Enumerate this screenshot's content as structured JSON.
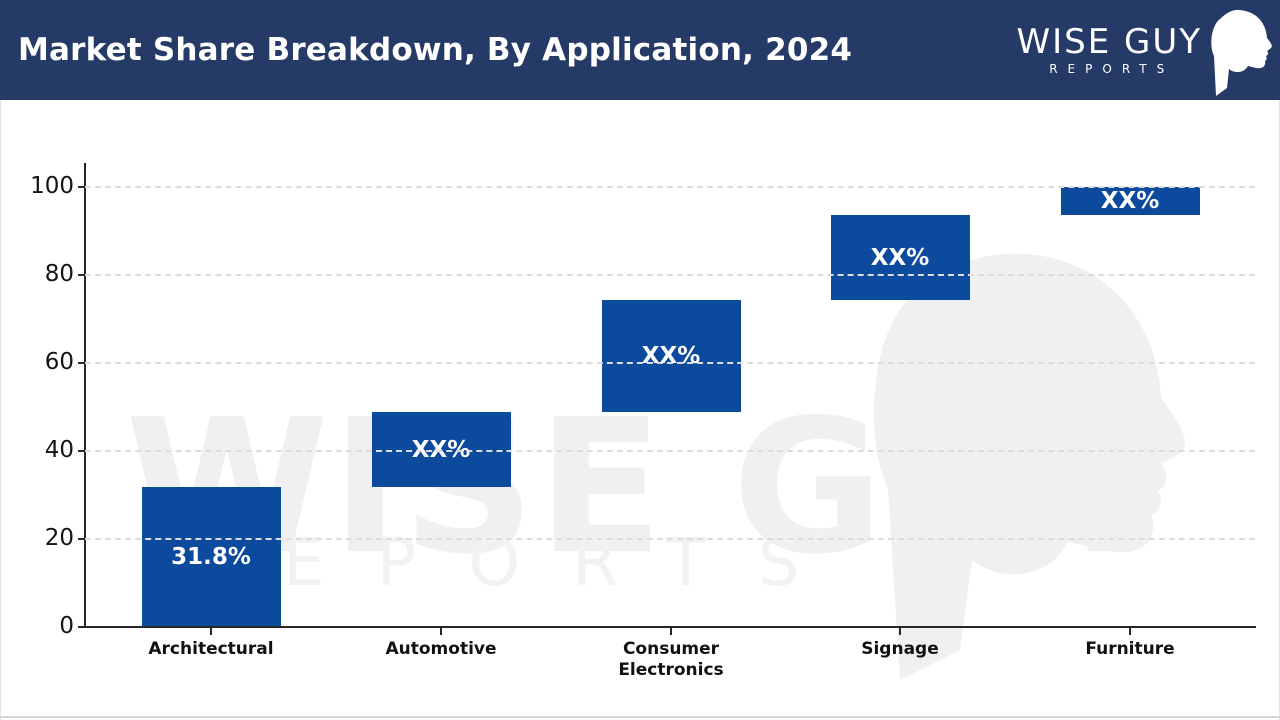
{
  "header": {
    "title": "Market Share Breakdown, By Application, 2024",
    "logo": {
      "line1": "WISE GUY",
      "line2": "REPORTS"
    }
  },
  "watermark": {
    "line1": "WISE GUY",
    "line2": "REPORTS"
  },
  "colors": {
    "header_bg": "#253a66",
    "bar": "#0c4a9e",
    "grid": "#dcdcdc",
    "axis": "#262626",
    "tick_text": "#141414",
    "bar_label_text": "#ffffff",
    "watermark": "#f0f0f2"
  },
  "chart_data": {
    "type": "bar",
    "variant": "waterfall",
    "title": "Market Share Breakdown, By Application, 2024",
    "xlabel": "",
    "ylabel": "",
    "categories": [
      "Architectural",
      "Automotive",
      "Consumer Electronics",
      "Signage",
      "Furniture"
    ],
    "category_label_lines": [
      [
        "Architectural"
      ],
      [
        "Automotive"
      ],
      [
        "Consumer",
        "Electronics"
      ],
      [
        "Signage"
      ],
      [
        "Furniture"
      ]
    ],
    "segments": [
      {
        "category": "Architectural",
        "start": 0,
        "end": 31.8,
        "label": "31.8%"
      },
      {
        "category": "Automotive",
        "start": 31.8,
        "end": 48.8,
        "label": "XX%"
      },
      {
        "category": "Consumer Electronics",
        "start": 48.8,
        "end": 74.3,
        "label": "XX%"
      },
      {
        "category": "Signage",
        "start": 74.3,
        "end": 93.6,
        "label": "XX%"
      },
      {
        "category": "Furniture",
        "start": 93.6,
        "end": 100,
        "label": "XX%"
      }
    ],
    "y_ticks": [
      0,
      20,
      40,
      60,
      80,
      100
    ],
    "ylim": [
      0,
      105
    ],
    "grid": "horizontal-dashed-above-bars",
    "legend": "none"
  }
}
